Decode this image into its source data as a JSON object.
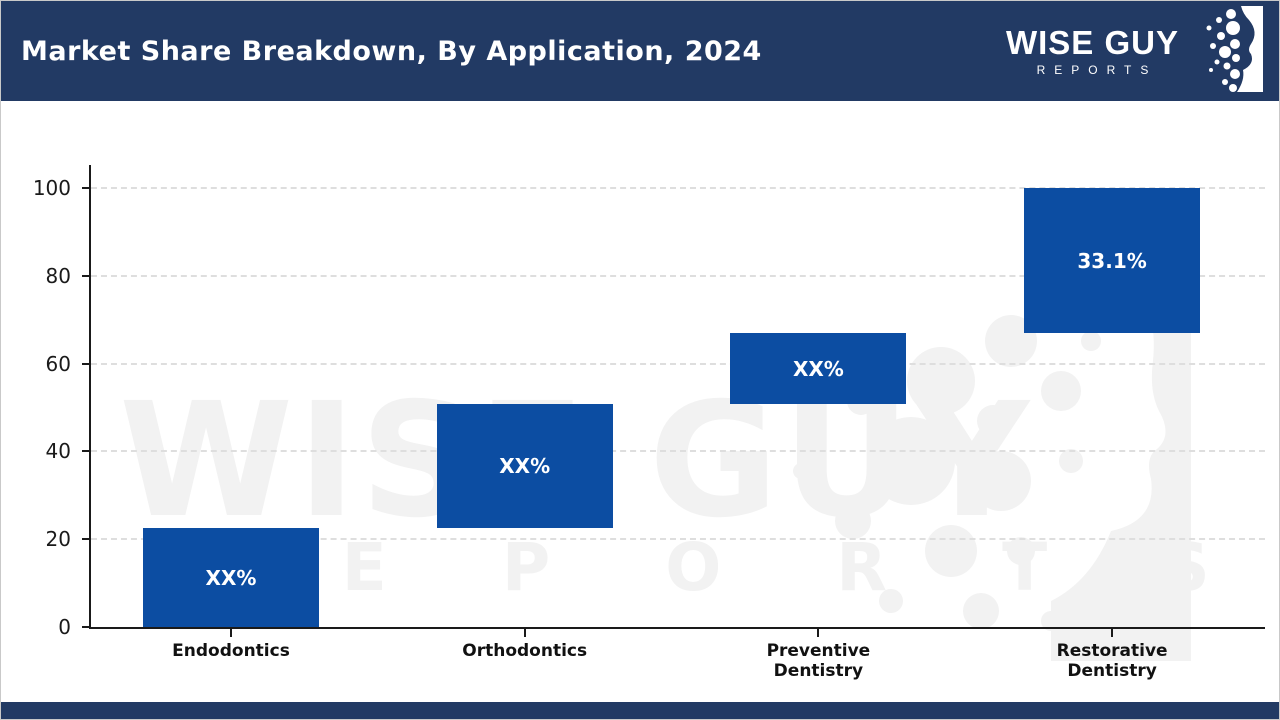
{
  "header": {
    "title": "Market Share Breakdown, By Application, 2024",
    "background": "#223a64",
    "logo": {
      "line1": "WISE GUY",
      "line2": "REPORTS"
    }
  },
  "watermark": {
    "line1": "WISE GUY",
    "line2": "REPORTS"
  },
  "chart_data": {
    "type": "bar",
    "subtype": "waterfall-floating-bars",
    "title": "Market Share Breakdown, By Application, 2024",
    "xlabel": "",
    "ylabel": "",
    "categories": [
      "Endodontics",
      "Orthodontics",
      "Preventive Dentistry",
      "Restorative Dentistry"
    ],
    "category_label_lines": [
      [
        "Endodontics"
      ],
      [
        "Orthodontics"
      ],
      [
        "Preventive",
        "Dentistry"
      ],
      [
        "Restorative",
        "Dentistry"
      ]
    ],
    "segments": [
      {
        "category": "Endodontics",
        "start": 0,
        "end": 22.5,
        "label": "XX%"
      },
      {
        "category": "Orthodontics",
        "start": 22.5,
        "end": 50.8,
        "label": "XX%"
      },
      {
        "category": "Preventive Dentistry",
        "start": 50.8,
        "end": 66.9,
        "label": "XX%"
      },
      {
        "category": "Restorative Dentistry",
        "start": 66.9,
        "end": 100,
        "label": "33.1%"
      }
    ],
    "yticks": [
      0,
      20,
      40,
      60,
      80,
      100
    ],
    "ylim": [
      0,
      105
    ],
    "grid": "horizontal-dashed",
    "bar_color": "#0c4da2",
    "bar_label_color": "#ffffff",
    "axis_color": "#1a1a1a",
    "gridline_color": "#dedede"
  },
  "footer": {
    "background": "#223a64"
  }
}
